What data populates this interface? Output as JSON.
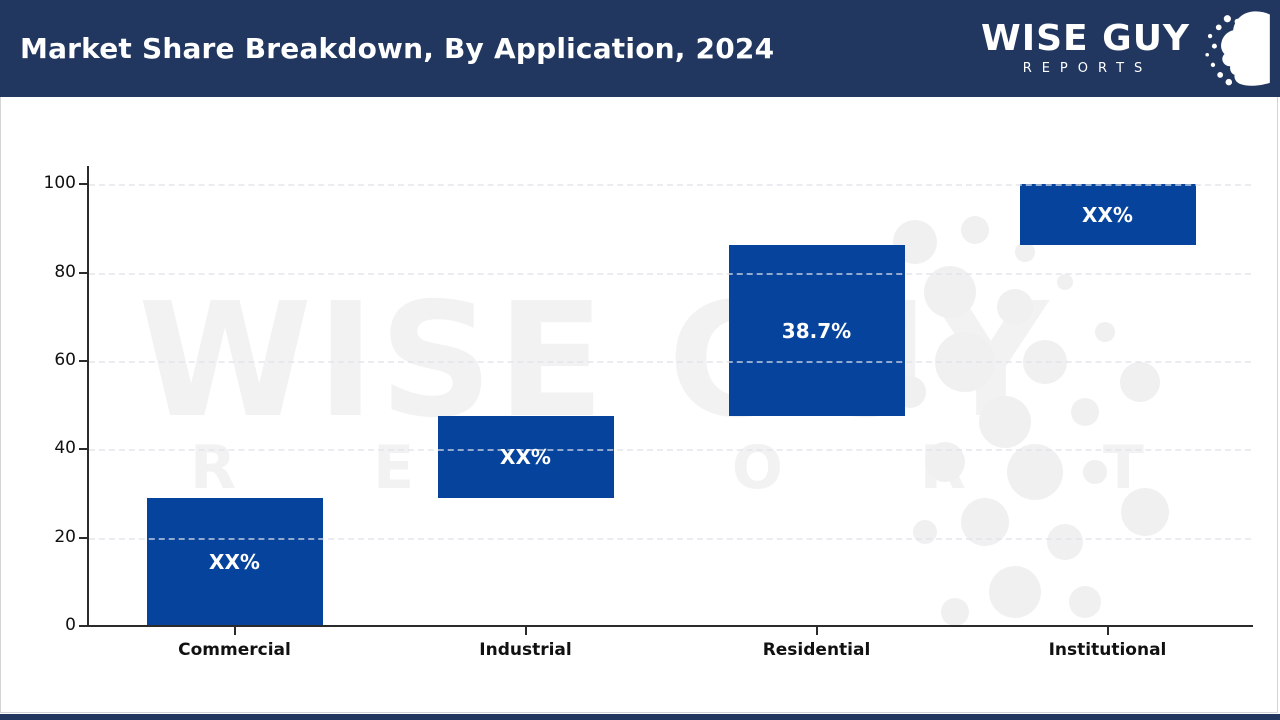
{
  "header": {
    "title": "Market Share Breakdown, By Application, 2024",
    "logo": {
      "line1": "WISE GUY",
      "line2": "REPORTS"
    }
  },
  "watermark": {
    "line1": "WISE GUY",
    "line2": "R E P O R T S"
  },
  "colors": {
    "header_bg": "#223760",
    "bar": "#05439d",
    "bar_label": "#ffffff",
    "gridline": "#e3e3e3",
    "axis": "#2b2b2b",
    "watermark": "#f2f2f2"
  },
  "chart_data": {
    "type": "bar",
    "subtype": "waterfall",
    "title": "Market Share Breakdown, By Application, 2024",
    "categories": [
      "Commercial",
      "Industrial",
      "Residential",
      "Institutional"
    ],
    "segments": [
      {
        "category": "Commercial",
        "start": 0,
        "end": 29,
        "value_label": "XX%"
      },
      {
        "category": "Industrial",
        "start": 29,
        "end": 47.5,
        "value_label": "XX%"
      },
      {
        "category": "Residential",
        "start": 47.5,
        "end": 86.2,
        "value": 38.7,
        "value_label": "38.7%"
      },
      {
        "category": "Institutional",
        "start": 86.2,
        "end": 100,
        "value_label": "XX%"
      }
    ],
    "ylim": [
      0,
      100
    ],
    "yticks": [
      0,
      20,
      40,
      60,
      80,
      100
    ],
    "xlabel": "",
    "ylabel": "",
    "grid": "horizontal-dashed",
    "legend": "none"
  }
}
